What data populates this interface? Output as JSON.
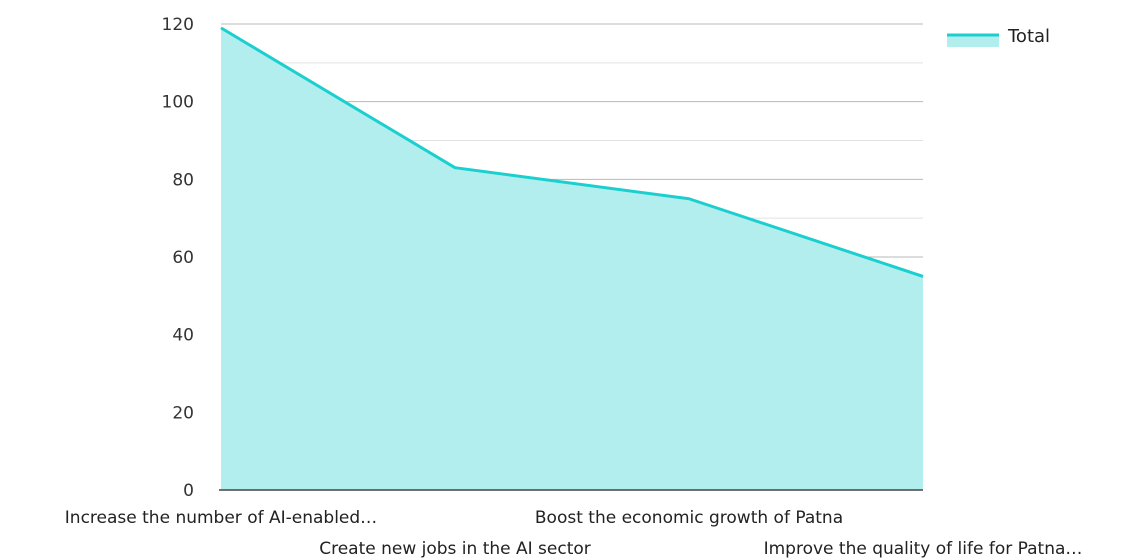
{
  "chart_data": {
    "type": "area",
    "categories": [
      "Increase the number of AI-enabled…",
      "Create new jobs in the AI sector",
      "Boost the economic growth of Patna",
      "Improve the quality of life for Patna…"
    ],
    "series": [
      {
        "name": "Total",
        "values": [
          119,
          83,
          75,
          55
        ]
      }
    ],
    "ylim": [
      0,
      120
    ],
    "yticks": [
      0,
      20,
      40,
      60,
      80,
      100,
      120
    ],
    "grid": true,
    "legend_position": "top-right",
    "colors": {
      "line": "#1ccfcf",
      "fill": "#b2eeee",
      "grid_major": "#b8b8b8",
      "grid_minor": "#e2e2e2",
      "axis": "#444444"
    }
  }
}
